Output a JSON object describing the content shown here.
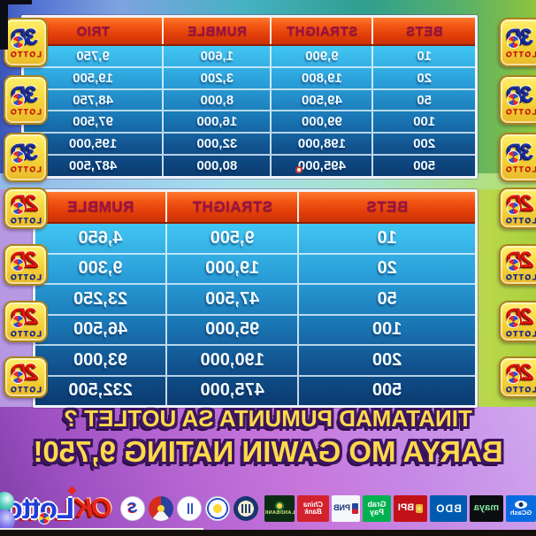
{
  "tables": [
    {
      "badge_big": "3D",
      "badge_small": "LOTTO",
      "headers": [
        "BETS",
        "STRAIGHT",
        "RUMBLE",
        "TRIO"
      ],
      "rows": [
        [
          "10",
          "9,900",
          "1,600",
          "9,750"
        ],
        [
          "20",
          "19,800",
          "3,200",
          "19,500"
        ],
        [
          "50",
          "49,500",
          "8,000",
          "48,750"
        ],
        [
          "100",
          "99,000",
          "16,000",
          "97,500"
        ],
        [
          "200",
          "198,000",
          "32,000",
          "195,000"
        ],
        [
          "500",
          "495,000",
          "80,000",
          "487,500"
        ]
      ]
    },
    {
      "badge_big": "2D",
      "badge_small": "LOTTO",
      "headers": [
        "BETS",
        "STRAIGHT",
        "RUMBLE"
      ],
      "rows": [
        [
          "10",
          "9,500",
          "4,650"
        ],
        [
          "20",
          "19,000",
          "9,300"
        ],
        [
          "50",
          "47,500",
          "23,250"
        ],
        [
          "100",
          "95,000",
          "46,500"
        ],
        [
          "200",
          "190,000",
          "93,000"
        ],
        [
          "500",
          "475,000",
          "232,500"
        ]
      ]
    }
  ],
  "banner": {
    "line1": "TINATAMAD PUMUNTA SA UOTLET ?",
    "line2": "BARYA MO GAWIN NATING 9,750!"
  },
  "footer": {
    "ok": "OK",
    "lotto": "Lotto",
    "banks": [
      {
        "id": "gcash",
        "label": "GCash"
      },
      {
        "id": "maya",
        "label": "maya"
      },
      {
        "id": "bdo",
        "label": "BDO"
      },
      {
        "id": "bpi",
        "label": "BPI"
      },
      {
        "id": "grabpay",
        "label": "Grab Pay"
      },
      {
        "id": "pnb",
        "label": "PNB"
      },
      {
        "id": "chinabank",
        "label": "China Bank"
      },
      {
        "id": "landbank",
        "label": "LANDBANK"
      }
    ],
    "seals": [
      {
        "id": "navy-gold-seal"
      },
      {
        "id": "bagong-pilipinas-seal"
      },
      {
        "id": "trophy-seal"
      },
      {
        "id": "pcso-seal"
      },
      {
        "id": "swirl-s-seal",
        "label": "S"
      }
    ]
  },
  "colors": {
    "header_orange": "#f25713",
    "header_text": "#9b1147",
    "table_blue_top": "#41c6f2",
    "table_blue_bottom": "#0b3b70",
    "banner_gold": "#ffd94a",
    "banner_outline": "#3c1560",
    "badge_yellow": "#f7d83c",
    "badge_3d_text": "#1c2f9c",
    "badge_2d_text": "#de1508"
  }
}
